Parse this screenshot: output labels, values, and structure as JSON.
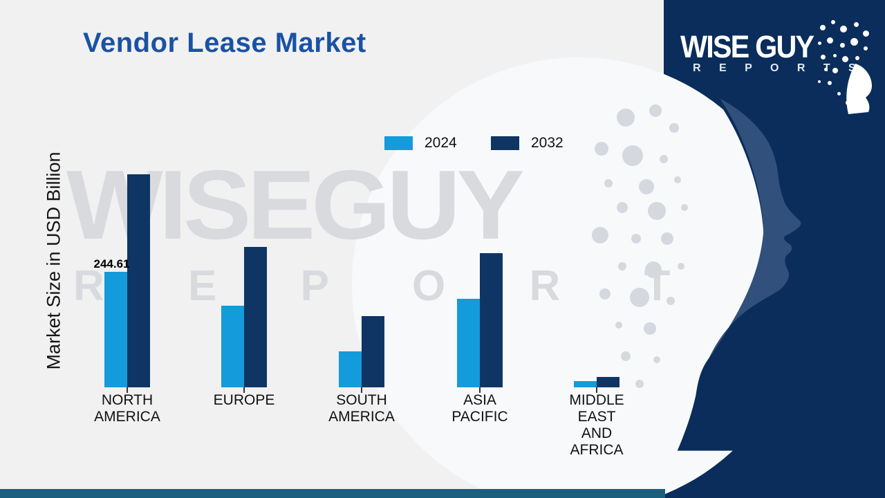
{
  "title": "Vendor Lease Market",
  "logo": {
    "line1": "WISE GUY",
    "line2": "R E P O R T S"
  },
  "watermark": {
    "line1": "WISEGUY",
    "line2": "R E P O R T S"
  },
  "colors": {
    "accent_2024": "#149bdb",
    "accent_2032": "#0f3564",
    "navy_background": "#0a2d5b",
    "teal_strip": "#1a5f7e",
    "title_blue": "#1a52a3"
  },
  "chart_data": {
    "type": "bar",
    "title": "Vendor Lease Market",
    "ylabel": "Market Size in USD Billion",
    "xlabel": "",
    "grid": false,
    "legend_position": "top-right",
    "ylim": [
      0,
      480
    ],
    "categories": [
      "NORTH AMERICA",
      "EUROPE",
      "SOUTH AMERICA",
      "ASIA PACIFIC",
      "MIDDLE EAST AND AFRICA"
    ],
    "category_label_lines": [
      [
        "NORTH",
        "AMERICA"
      ],
      [
        "EUROPE"
      ],
      [
        "SOUTH",
        "AMERICA"
      ],
      [
        "ASIA",
        "PACIFIC"
      ],
      [
        "MIDDLE",
        "EAST",
        "AND",
        "AFRICA"
      ]
    ],
    "series": [
      {
        "name": "2024",
        "color": "#149bdb",
        "values": [
          244.61,
          173,
          76,
          188,
          13
        ]
      },
      {
        "name": "2032",
        "color": "#0f3564",
        "values": [
          451,
          297,
          151,
          284,
          22
        ]
      }
    ],
    "data_labels": [
      {
        "series": "2024",
        "category": "NORTH AMERICA",
        "text": "244.61"
      }
    ]
  }
}
